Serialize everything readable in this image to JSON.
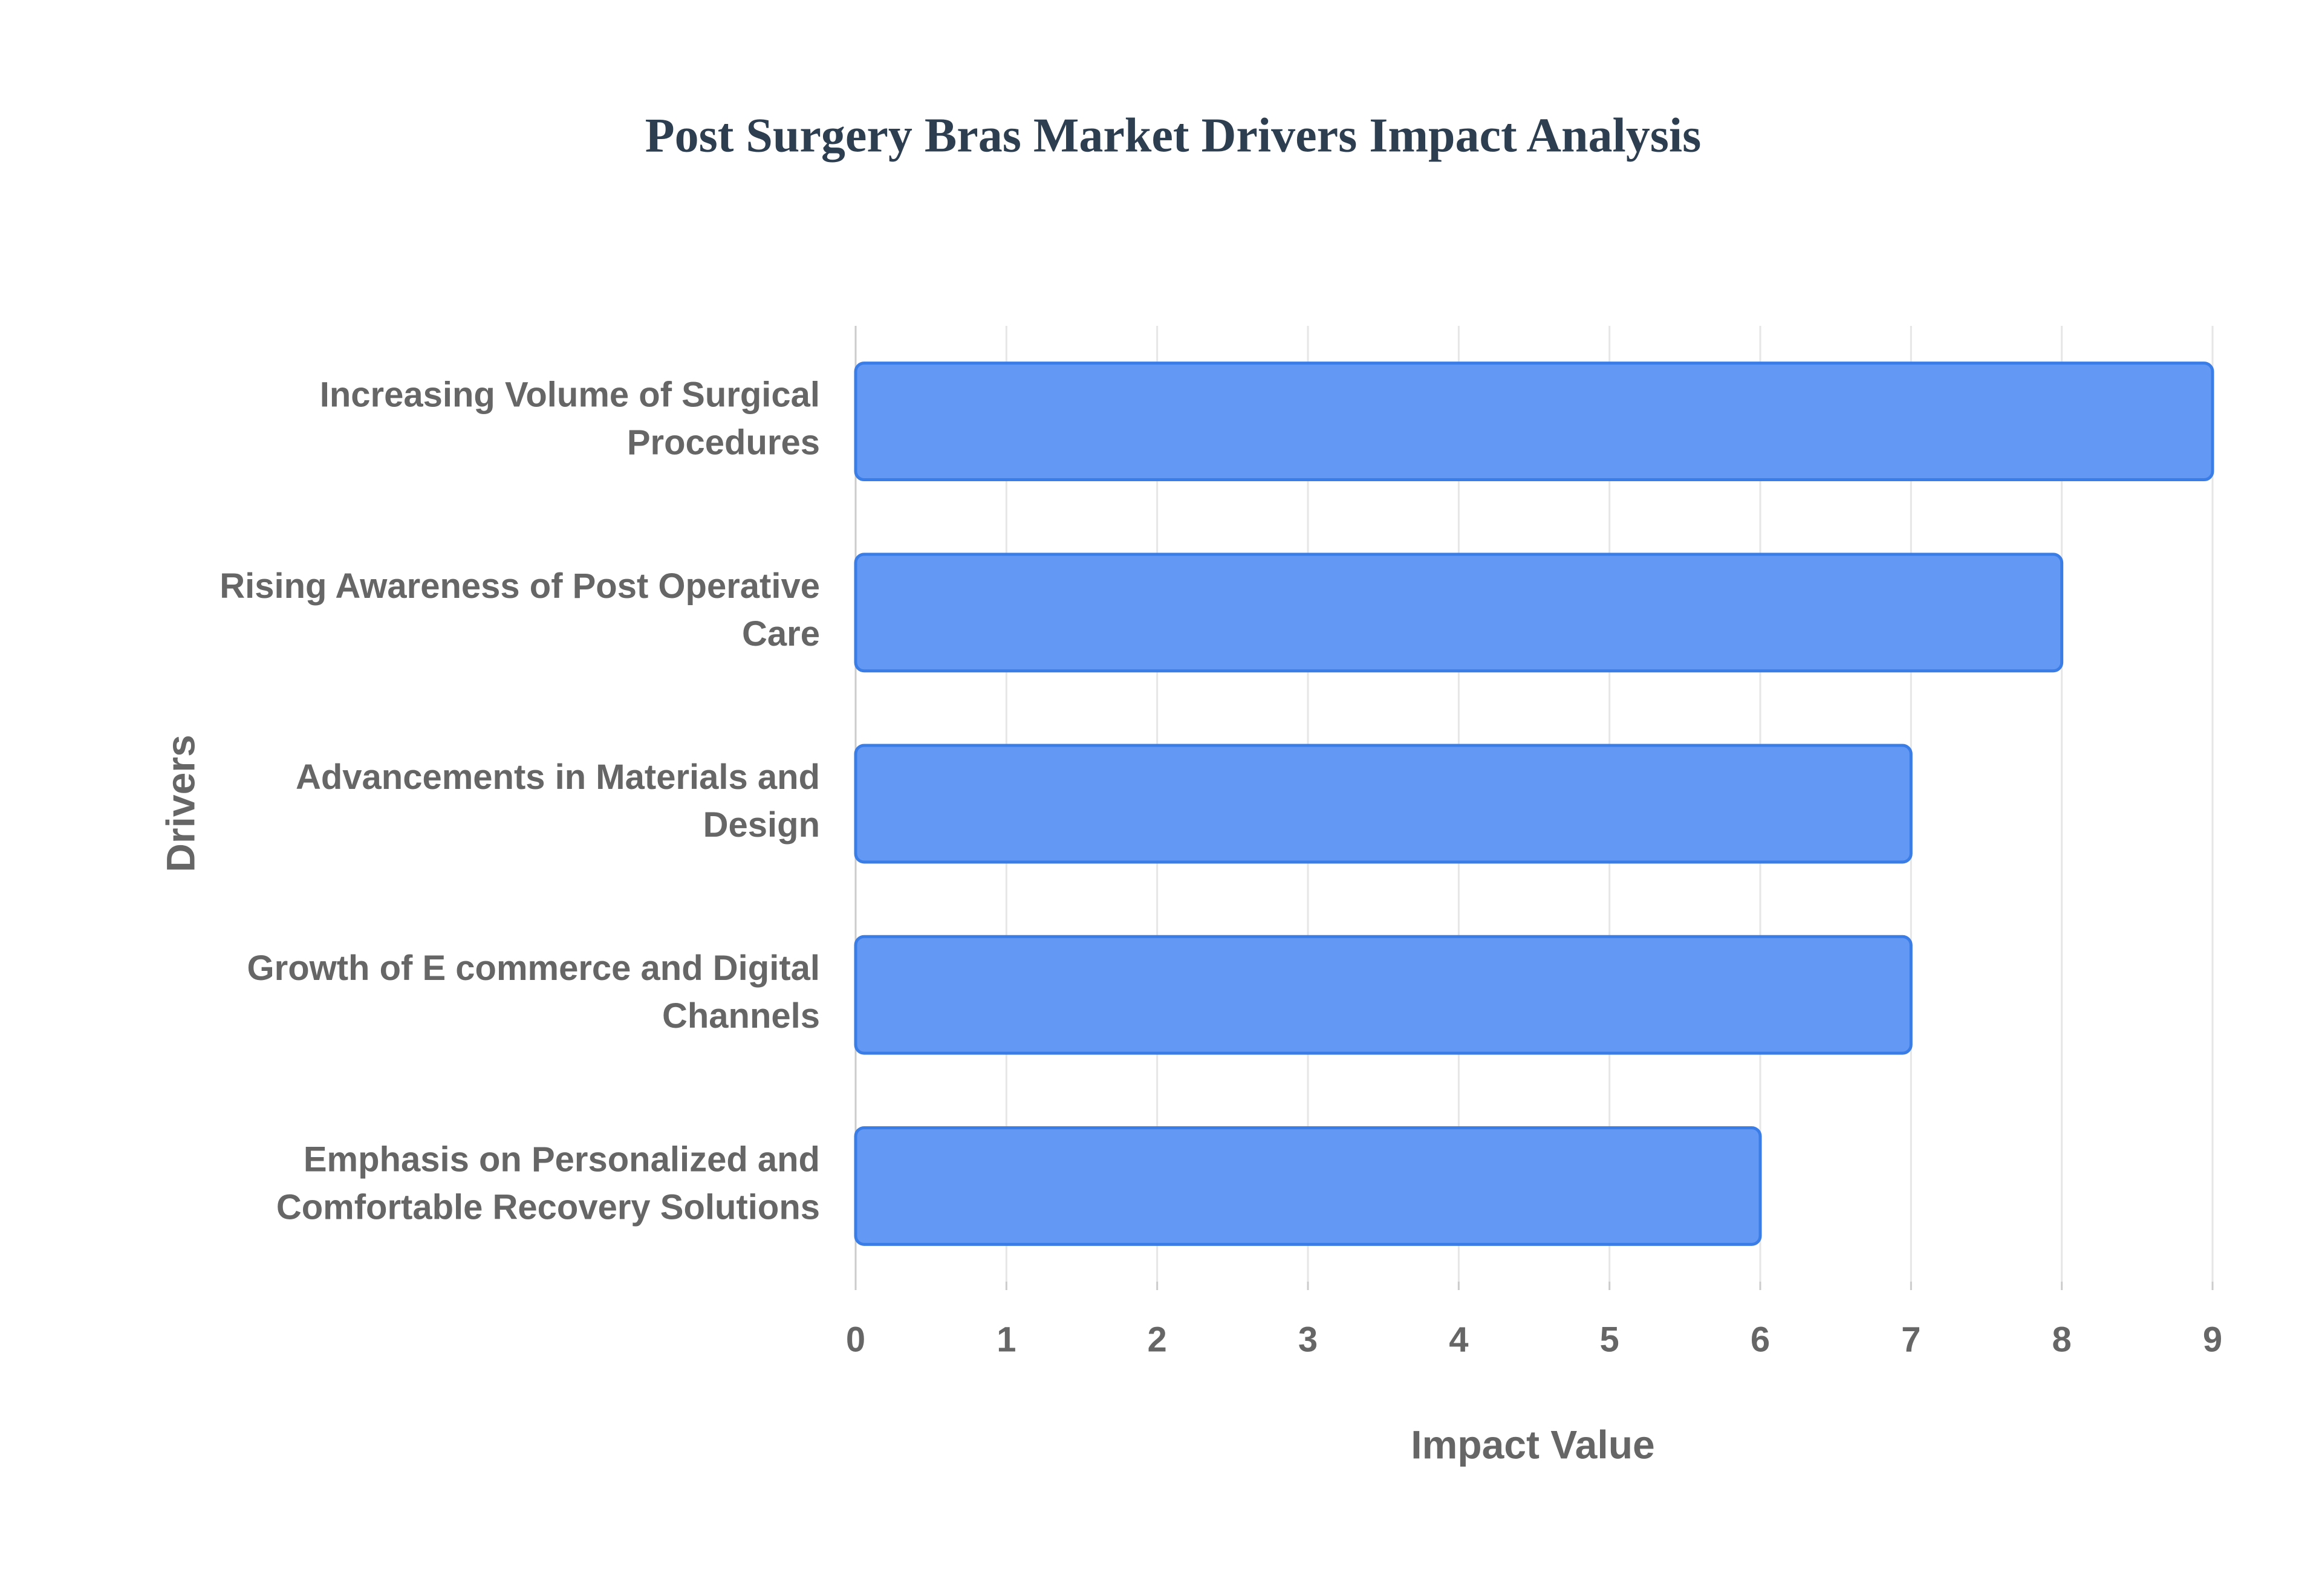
{
  "chart_data": {
    "type": "bar",
    "orientation": "horizontal",
    "title": "Post Surgery Bras Market Drivers Impact Analysis",
    "x_label": "Impact Value",
    "y_label": "Drivers",
    "categories": [
      "Increasing Volume of Surgical Procedures",
      "Rising Awareness of Post Operative Care",
      "Advancements in Materials and Design",
      "Growth of E commerce and Digital Channels",
      "Emphasis on Personalized and Comfortable Recovery Solutions"
    ],
    "values": [
      9,
      8,
      7,
      7,
      6
    ],
    "color": "#6399f5",
    "edge_color": "#3b7de6",
    "xlim": [
      0,
      9
    ],
    "xticks": [
      0,
      1,
      2,
      3,
      4,
      5,
      6,
      7,
      8,
      9
    ],
    "grid": true
  }
}
